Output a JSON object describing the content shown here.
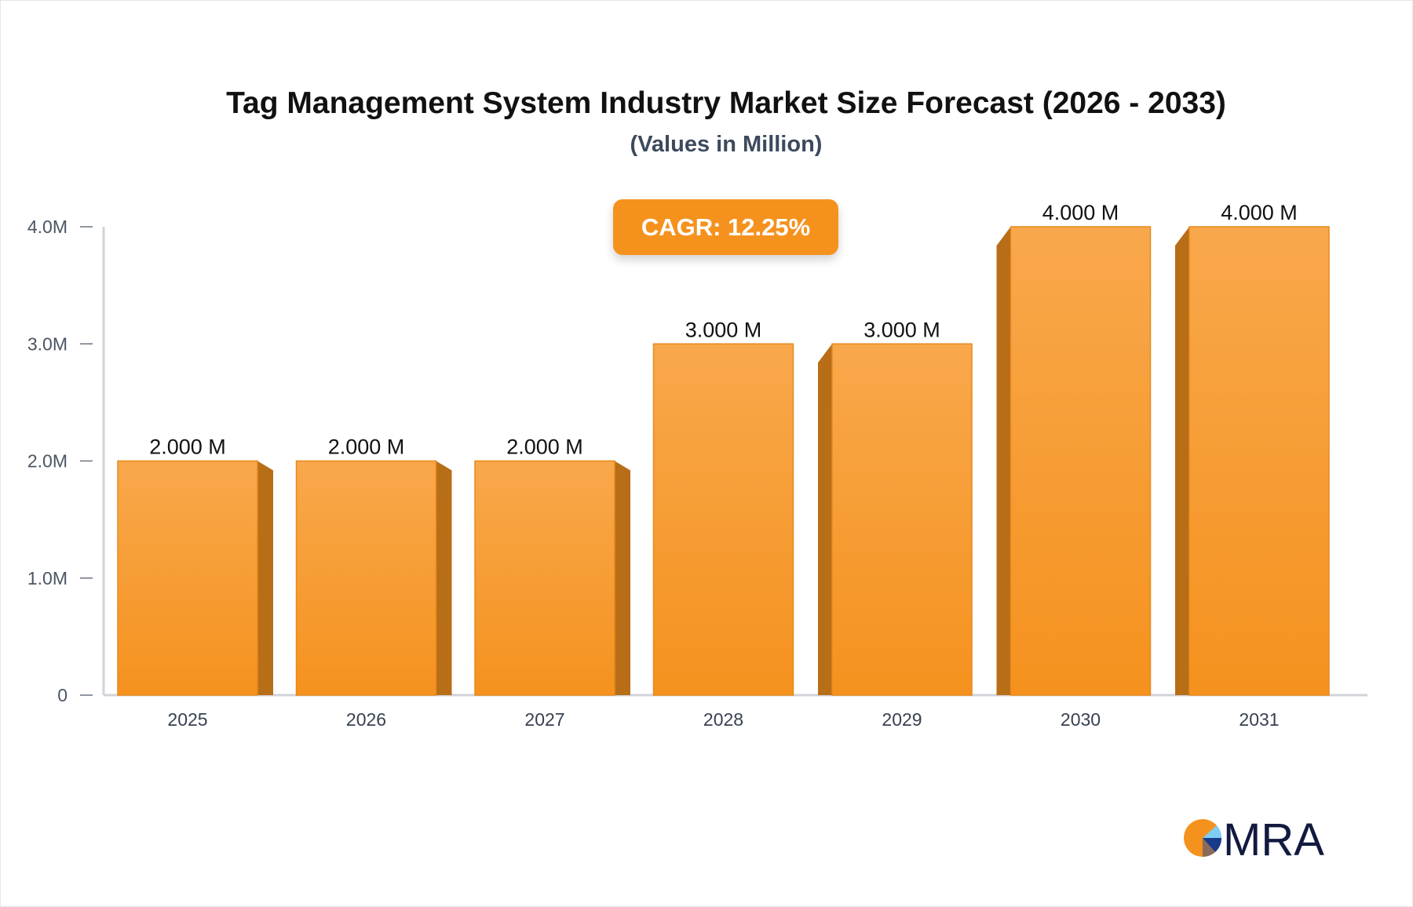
{
  "chart_data": {
    "type": "bar",
    "title": "Tag Management System Industry Market Size Forecast (2026 - 2033)",
    "subtitle": "(Values in Million)",
    "categories": [
      "2025",
      "2026",
      "2027",
      "2028",
      "2029",
      "2030",
      "2031"
    ],
    "values": [
      2.0,
      2.0,
      2.0,
      3.0,
      3.0,
      4.0,
      4.0
    ],
    "data_labels": [
      "2.000 M",
      "2.000 M",
      "2.000 M",
      "3.000 M",
      "3.000 M",
      "4.000 M",
      "4.000 M"
    ],
    "yticks": [
      0,
      1,
      2,
      3,
      4
    ],
    "ytick_labels": [
      "0",
      "1.0M",
      "2.0M",
      "3.0M",
      "4.0M"
    ],
    "ylim": [
      0,
      4
    ],
    "grid": false,
    "annotation": "CAGR: 12.25%",
    "colors": {
      "bar": "#f5921e",
      "bar_top": "#f8a84c",
      "bar_side": "#b86d17",
      "axis": "#d0d3da",
      "annotation_bg": "#f5921e"
    }
  },
  "logo": {
    "text": "MRA"
  }
}
